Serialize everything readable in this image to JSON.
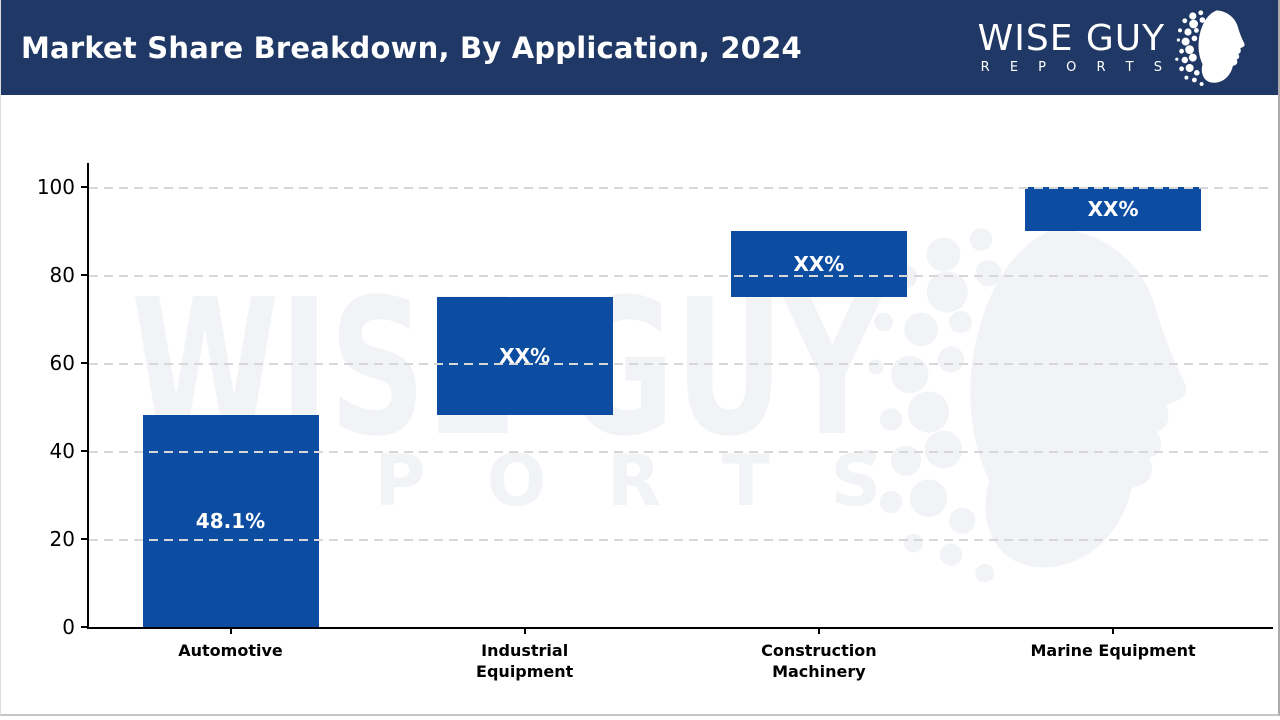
{
  "header": {
    "title": "Market Share Breakdown, By Application, 2024",
    "logo": {
      "name": "WISE GUY",
      "sub": "R E P O R T S"
    }
  },
  "watermark": {
    "line1": "WISE GUY",
    "line2": "R E P O R T S"
  },
  "chart_data": {
    "type": "bar",
    "variant": "waterfall",
    "title": "Market Share Breakdown, By Application, 2024",
    "categories": [
      "Automotive",
      "Industrial Equipment",
      "Construction Machinery",
      "Marine Equipment"
    ],
    "category_label_lines": [
      [
        "Automotive"
      ],
      [
        "Industrial",
        "Equipment"
      ],
      [
        "Construction",
        "Machinery"
      ],
      [
        "Marine Equipment"
      ]
    ],
    "segments": [
      {
        "category": "Automotive",
        "start": 0,
        "end": 48.1,
        "label": "48.1%"
      },
      {
        "category": "Industrial Equipment",
        "start": 48.1,
        "end": 75,
        "label": "XX%"
      },
      {
        "category": "Construction Machinery",
        "start": 75,
        "end": 90,
        "label": "XX%"
      },
      {
        "category": "Marine Equipment",
        "start": 90,
        "end": 100,
        "label": "XX%"
      }
    ],
    "xlabel": "",
    "ylabel": "",
    "ylim": [
      0,
      100
    ],
    "yticks": [
      0,
      20,
      40,
      60,
      80,
      100
    ],
    "grid": {
      "horizontal": true,
      "style": "dashed",
      "drawn_over_bars": true
    },
    "legend": "none",
    "bar_color": "#0C4DA2",
    "bar_label_color": "#FFFFFF"
  },
  "colors": {
    "header_bg": "#1F3865",
    "bar": "#0C4DA2",
    "watermark": "#F2F3F6",
    "grid": "#D7D7D7",
    "axis": "#000000"
  }
}
